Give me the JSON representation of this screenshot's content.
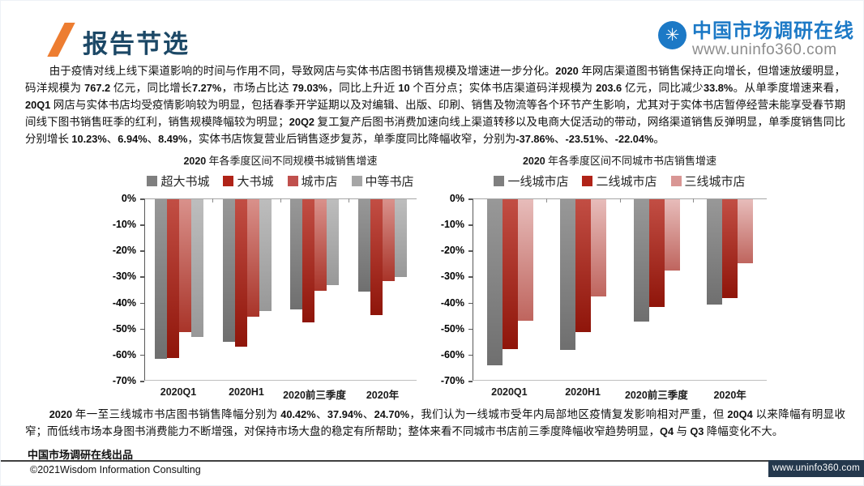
{
  "page": {
    "title": "报告节选",
    "brand": {
      "icon": "compass",
      "name": "中国市场调研在线",
      "url": "www.uninfo360.com"
    },
    "footer": {
      "producer": "中国市场调研在线出品",
      "copyright": "©2021Wisdom Information Consulting",
      "badge_url": "www.uninfo360.com",
      "badge_color": "#24384D"
    },
    "accent_orange": "#ED7D31",
    "accent_blue": "#1C79C6",
    "title_color": "#1C4866"
  },
  "paragraphs": {
    "p1": [
      [
        "由于疫情对线上线下渠道影响的时间与作用不同，导致网店与实体书店图书销售规模及增速进一步分化。",
        false
      ],
      [
        "2020",
        true
      ],
      [
        " 年网店渠道图书销售保持正向增长，但增速放缓明显，码洋规模为 ",
        false
      ],
      [
        "767.2",
        true
      ],
      [
        " 亿元，同比增长",
        false
      ],
      [
        "7.27%",
        true
      ],
      [
        "，市场占比达 ",
        false
      ],
      [
        "79.03%",
        true
      ],
      [
        "，同比上升近 ",
        false
      ],
      [
        "10",
        true
      ],
      [
        " 个百分点；实体书店渠道码洋规模为 ",
        false
      ],
      [
        "203.6",
        true
      ],
      [
        " 亿元，同比减少",
        false
      ],
      [
        "33.8%",
        true
      ],
      [
        "。从单季度增速来看，",
        false
      ],
      [
        "20Q1",
        true
      ],
      [
        " 网店与实体书店均受疫情影响较为明显，包括春季开学延期以及对编辑、出版、印刷、销售及物流等各个环节产生影响，尤其对于实体书店暂停经营未能享受春节期间线下图书销售旺季的红利，销售规模降幅较为明显；",
        false
      ],
      [
        "20Q2",
        true
      ],
      [
        " 复工复产后图书消费加速向线上渠道转移以及电商大促活动的带动，网络渠道销售反弹明显，单季度销售同比分别增长 ",
        false
      ],
      [
        "10.23%",
        true
      ],
      [
        "、",
        false
      ],
      [
        "6.94%",
        true
      ],
      [
        "、",
        false
      ],
      [
        "8.49%",
        true
      ],
      [
        "，实体书店恢复营业后销售逐步复苏，单季度同比降幅收窄，分别为",
        false
      ],
      [
        "-37.86%",
        true
      ],
      [
        "、",
        false
      ],
      [
        "-23.51%",
        true
      ],
      [
        "、",
        false
      ],
      [
        "-22.04%",
        true
      ],
      [
        "。",
        false
      ]
    ],
    "p2": [
      [
        "2020",
        true
      ],
      [
        " 年一至三线城市书店图书销售降幅分别为 ",
        false
      ],
      [
        "40.42%",
        true
      ],
      [
        "、",
        false
      ],
      [
        "37.94%",
        true
      ],
      [
        "、",
        false
      ],
      [
        "24.70%",
        true
      ],
      [
        "，我们认为一线城市受年内局部地区疫情复发影响相对严重，但 ",
        false
      ],
      [
        "20Q4",
        true
      ],
      [
        " 以来降幅有明显收窄；而低线市场本身图书消费能力不断增强，对保持市场大盘的稳定有所帮助；整体来看不同城市书店前三季度降幅收窄趋势明显，",
        false
      ],
      [
        "Q4",
        true
      ],
      [
        " 与 ",
        false
      ],
      [
        "Q3",
        true
      ],
      [
        " 降幅变化不大。",
        false
      ]
    ]
  },
  "chart_data": [
    {
      "type": "bar",
      "title": "2020 年各季度区间不同规模书城销售增速",
      "title_rich": [
        [
          "2020",
          true
        ],
        [
          " 年各季度区间不同规模书城销售增速",
          false
        ]
      ],
      "categories": [
        "2020Q1",
        "2020H1",
        "2020前三季度",
        "2020年"
      ],
      "series": [
        {
          "name": "超大书城",
          "values": [
            -61.2,
            -54.8,
            -42.3,
            -35.6
          ],
          "color": "#7F7F7F",
          "color_top": "#989898",
          "color_bottom": "#6F6F6F"
        },
        {
          "name": "大书城",
          "values": [
            -61.0,
            -56.6,
            -47.2,
            -44.5
          ],
          "color": "#B02318",
          "color_top": "#C24E44",
          "color_bottom": "#8F150A"
        },
        {
          "name": "城市店",
          "values": [
            -50.9,
            -45.0,
            -35.0,
            -31.4
          ],
          "color": "#C0504D",
          "color_top": "#D9918B",
          "color_bottom": "#A93429"
        },
        {
          "name": "中等书店",
          "values": [
            -52.9,
            -42.9,
            -32.9,
            -29.9
          ],
          "color": "#A6A6A6",
          "color_top": "#BDBDBD",
          "color_bottom": "#989898"
        }
      ],
      "ylabel": "",
      "xlabel": "",
      "ylim": [
        -70,
        0
      ],
      "yticks": [
        "0%",
        "-10%",
        "-20%",
        "-30%",
        "-40%",
        "-50%",
        "-60%",
        "-70%"
      ],
      "legend_position": "top",
      "grid": false
    },
    {
      "type": "bar",
      "title": "2020 年各季度区间不同城市书店销售增速",
      "title_rich": [
        [
          "2020",
          true
        ],
        [
          " 年各季度区间不同城市书店销售增速",
          false
        ]
      ],
      "categories": [
        "2020Q1",
        "2020H1",
        "2020前三季度",
        "2020年"
      ],
      "series": [
        {
          "name": "一线城市店",
          "values": [
            -63.8,
            -57.8,
            -47.0,
            -40.42
          ],
          "color": "#7F7F7F",
          "color_top": "#989898",
          "color_bottom": "#6F6F6F"
        },
        {
          "name": "二线城市店",
          "values": [
            -57.6,
            -51.0,
            -41.5,
            -37.94
          ],
          "color": "#B02318",
          "color_top": "#C24E44",
          "color_bottom": "#8F150A"
        },
        {
          "name": "三线城市店",
          "values": [
            -46.8,
            -37.2,
            -27.3,
            -24.7
          ],
          "color": "#D99694",
          "color_top": "#E7BCBA",
          "color_bottom": "#BF655E"
        }
      ],
      "ylabel": "",
      "xlabel": "",
      "ylim": [
        -70,
        0
      ],
      "yticks": [
        "0%",
        "-10%",
        "-20%",
        "-30%",
        "-40%",
        "-50%",
        "-60%",
        "-70%"
      ],
      "legend_position": "top",
      "grid": false
    }
  ]
}
